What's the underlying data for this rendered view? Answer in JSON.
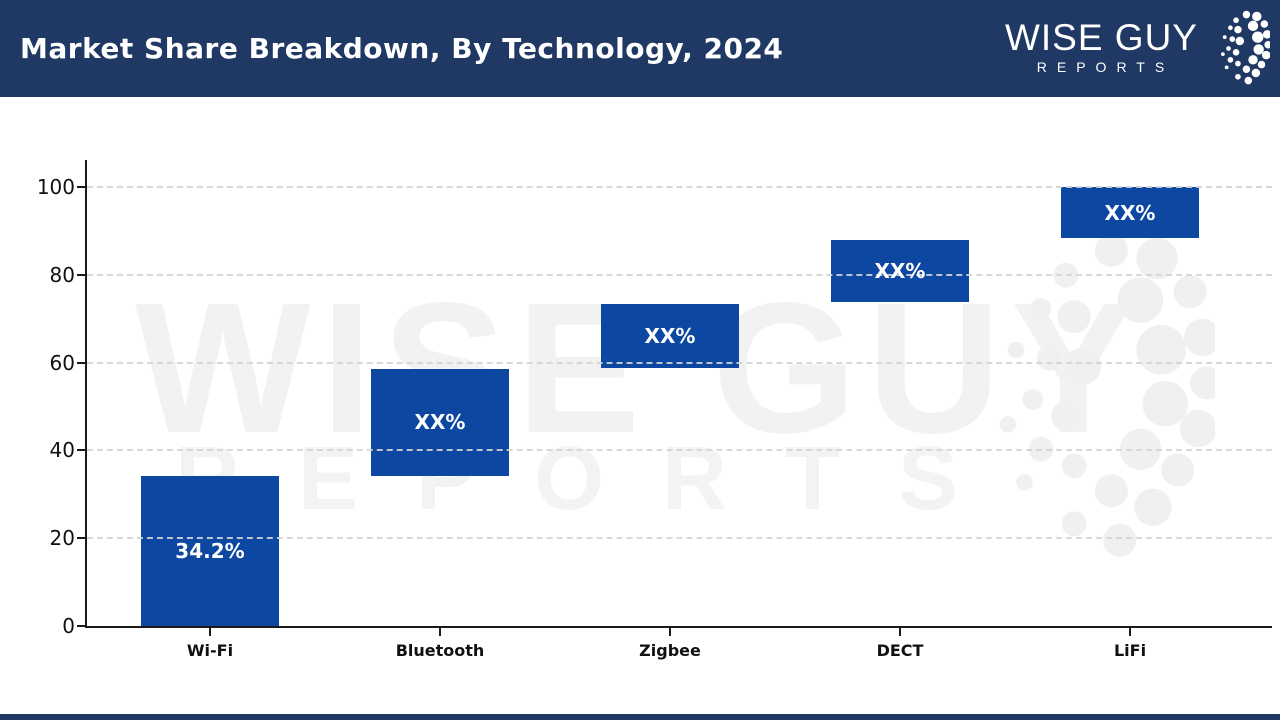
{
  "header": {
    "title": "Market Share Breakdown, By Technology, 2024",
    "logo": {
      "line1": "WISE GUY",
      "line2": "REPORTS"
    }
  },
  "watermark": {
    "line1": "WISE GUY",
    "line2": "REPORTS"
  },
  "colors": {
    "header_bg": "#1f3864",
    "bar": "#0c47a1",
    "gridline": "#d4d4d4",
    "axis": "#1a1a1a",
    "bar_label": "#ffffff",
    "watermark": "#f2f2f2",
    "footer": "#1f3864"
  },
  "chart_data": {
    "type": "bar",
    "subtype": "floating-waterfall",
    "title": "Market Share Breakdown, By Technology, 2024",
    "categories": [
      "Wi-Fi",
      "Bluetooth",
      "Zigbee",
      "DECT",
      "LiFi"
    ],
    "bars": [
      {
        "category": "Wi-Fi",
        "start": 0,
        "end": 34.2,
        "label": "34.2%"
      },
      {
        "category": "Bluetooth",
        "start": 34.2,
        "end": 58.6,
        "label": "XX%"
      },
      {
        "category": "Zigbee",
        "start": 58.7,
        "end": 73.4,
        "label": "XX%"
      },
      {
        "category": "DECT",
        "start": 73.9,
        "end": 88.0,
        "label": "XX%"
      },
      {
        "category": "LiFi",
        "start": 88.3,
        "end": 100,
        "label": "XX%"
      }
    ],
    "xlabel": "",
    "ylabel": "",
    "yticks": [
      0,
      20,
      40,
      60,
      80,
      100
    ],
    "ylim": [
      0,
      106
    ],
    "grid": "horizontal-dashed",
    "gridlines_over_bars": true,
    "legend": "none"
  }
}
